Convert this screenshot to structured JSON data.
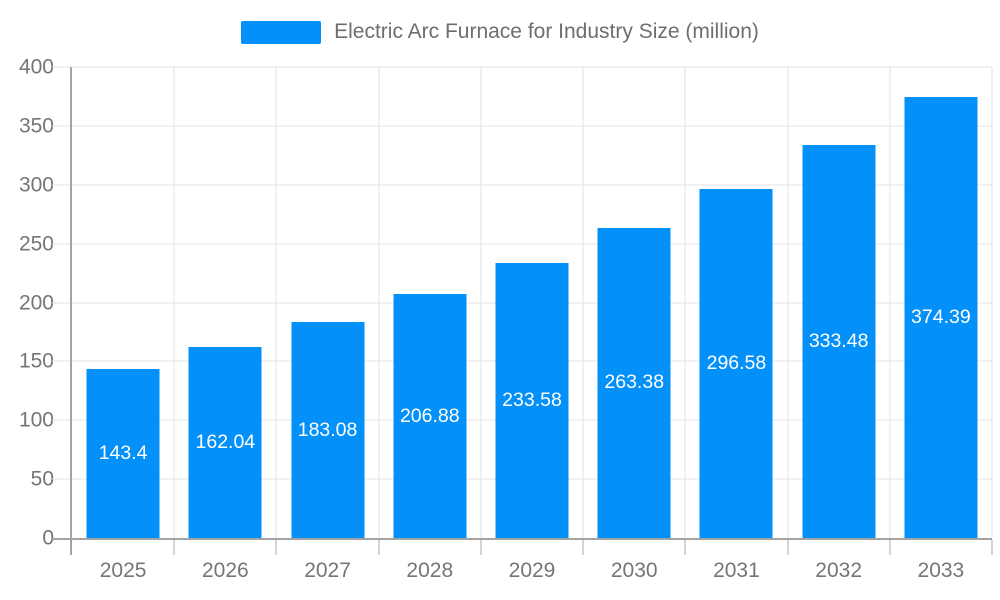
{
  "chart_data": {
    "type": "bar",
    "title": "Electric Arc Furnace for Industry Size (million)",
    "categories": [
      "2025",
      "2026",
      "2027",
      "2028",
      "2029",
      "2030",
      "2031",
      "2032",
      "2033"
    ],
    "values": [
      143.4,
      162.04,
      183.08,
      206.88,
      233.58,
      263.38,
      296.58,
      333.48,
      374.39
    ],
    "value_labels": [
      "143.4",
      "162.04",
      "183.08",
      "206.88",
      "233.58",
      "263.38",
      "296.58",
      "333.48",
      "374.39"
    ],
    "xlabel": "",
    "ylabel": "",
    "ylim": [
      0,
      400
    ],
    "yticks": [
      0,
      50,
      100,
      150,
      200,
      250,
      300,
      350,
      400
    ],
    "grid": true,
    "legend_position": "top",
    "colors": {
      "bar": "#0390f8",
      "bar_label_text": "#ffffff",
      "axis_text": "#757575",
      "title_text": "#6e6e6e",
      "grid_line": "#e3e3e3",
      "axis_line": "#a3a3a3"
    }
  }
}
